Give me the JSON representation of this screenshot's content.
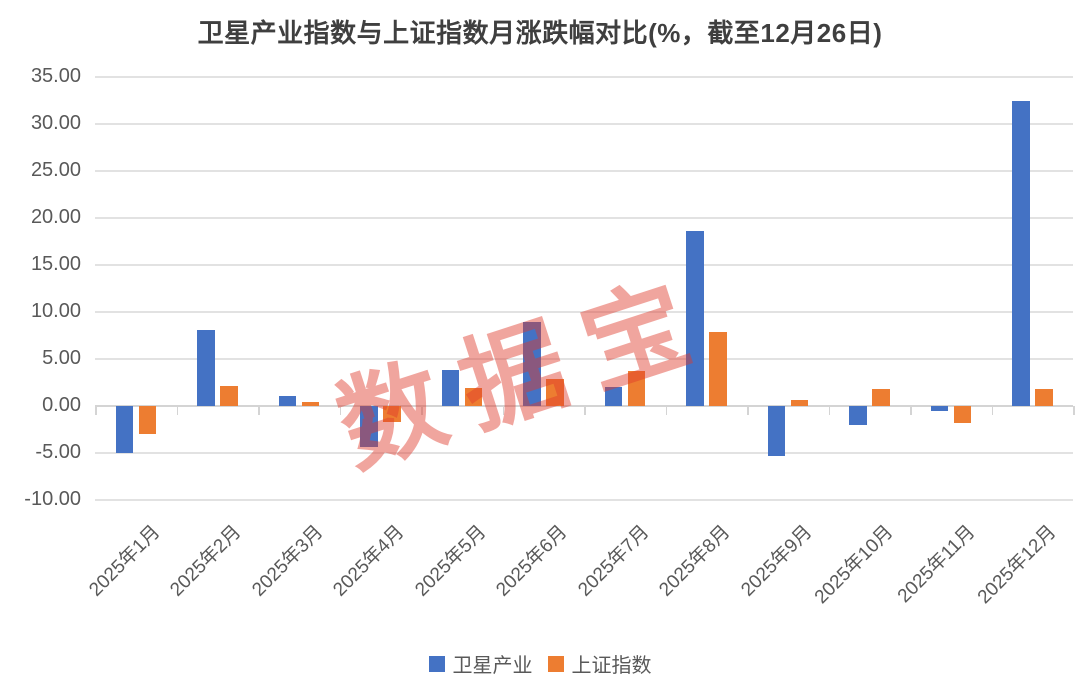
{
  "watermark": "数据宝",
  "colors": {
    "satellite_series": "#4472C4",
    "sse_series": "#ED7D31",
    "watermark": "#E03A2B",
    "grid_line": "#E2E2E2",
    "zero_axis": "#D4D4D4",
    "tick_text": "#595959",
    "title_text": "#3F3F3F"
  },
  "chart_data": {
    "type": "bar",
    "title": "卫星产业指数与上证指数月涨跌幅对比(%，截至12月26日)",
    "xlabel": "",
    "ylabel": "",
    "categories": [
      "2025年1月",
      "2025年2月",
      "2025年3月",
      "2025年4月",
      "2025年5月",
      "2025年6月",
      "2025年7月",
      "2025年8月",
      "2025年9月",
      "2025年10月",
      "2025年11月",
      "2025年12月"
    ],
    "series": [
      {
        "name": "卫星产业",
        "color": "#4472C4",
        "values": [
          -5.0,
          8.1,
          1.1,
          -4.4,
          3.8,
          8.9,
          2.0,
          18.6,
          -5.3,
          -2.0,
          -0.5,
          32.5
        ]
      },
      {
        "name": "上证指数",
        "color": "#ED7D31",
        "values": [
          -3.0,
          2.1,
          0.4,
          -1.7,
          1.9,
          2.9,
          3.7,
          7.9,
          0.6,
          1.8,
          -1.8,
          1.8
        ]
      }
    ],
    "ylim": [
      -10,
      35
    ],
    "ytick_step": 5,
    "ytick_labels": [
      "35.00",
      "30.00",
      "25.00",
      "20.00",
      "15.00",
      "10.00",
      "5.00",
      "0.00",
      "-5.00",
      "-10.00"
    ],
    "grid": true,
    "legend_position": "bottom"
  }
}
